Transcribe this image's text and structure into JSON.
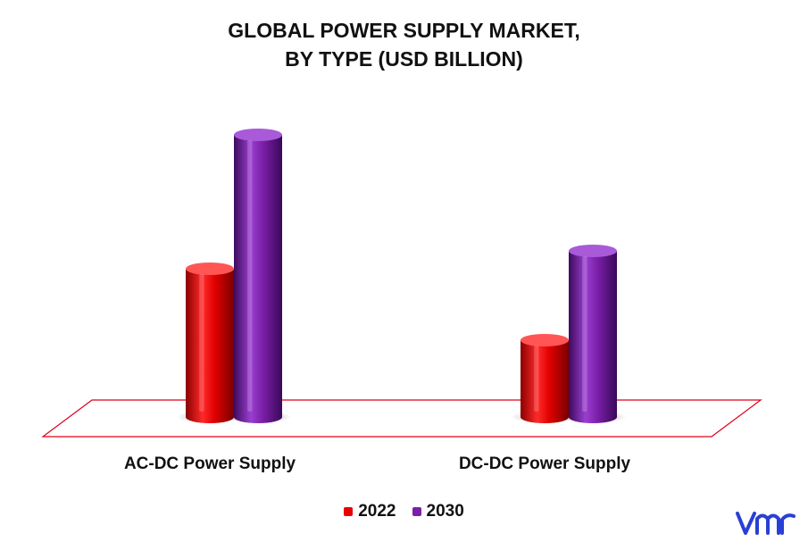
{
  "title_line1": "GLOBAL POWER SUPPLY MARKET,",
  "title_line2": "BY TYPE (USD BILLION)",
  "colors": {
    "2022": "#e60000",
    "2030": "#7a1fa8",
    "floor": "#e0001b",
    "logo": "#2a3fd6"
  },
  "icons": {
    "logo": "vmr-logo-icon"
  },
  "chart_data": {
    "type": "bar",
    "title": "GLOBAL POWER SUPPLY MARKET, BY TYPE (USD BILLION)",
    "categories": [
      "AC-DC Power Supply",
      "DC-DC Power Supply"
    ],
    "series": [
      {
        "name": "2022",
        "values": [
          8.3,
          4.3
        ]
      },
      {
        "name": "2030",
        "values": [
          15.8,
          9.3
        ]
      }
    ],
    "ylim": [
      0,
      17
    ],
    "grid": false,
    "legend_position": "bottom"
  }
}
